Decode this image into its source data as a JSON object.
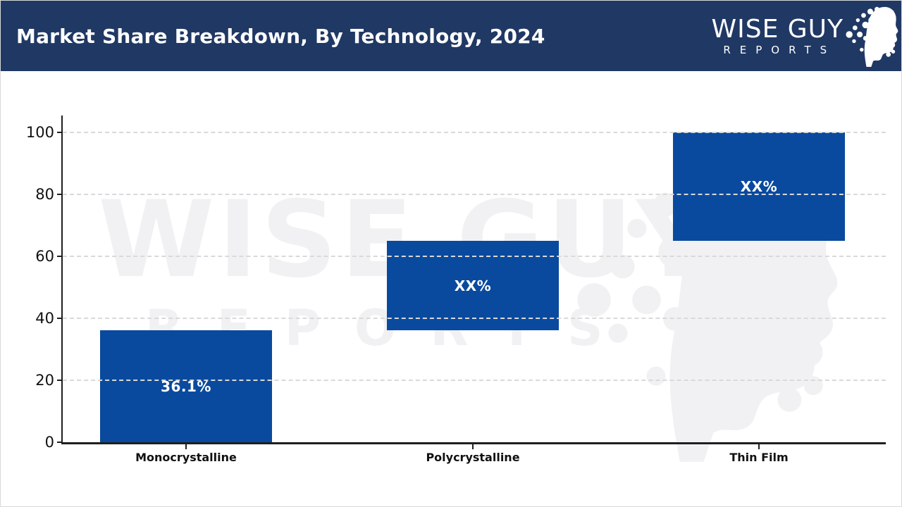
{
  "header": {
    "title": "Market Share Breakdown, By Technology, 2024",
    "logo": {
      "line1": "WISE GUY",
      "line2": "REPORTS"
    }
  },
  "watermark": {
    "line1": "WISE GUY",
    "line2": "REPORTS"
  },
  "chart_data": {
    "type": "bar",
    "subtype": "floating-waterfall-segments",
    "title": "Market Share Breakdown, By Technology, 2024",
    "categories": [
      "Monocrystalline",
      "Polycrystalline",
      "Thin Film"
    ],
    "bars": [
      {
        "category": "Monocrystalline",
        "start": 0,
        "end": 36.1,
        "label": "36.1%"
      },
      {
        "category": "Polycrystalline",
        "start": 36.1,
        "end": 65,
        "label": "XX%"
      },
      {
        "category": "Thin Film",
        "start": 65,
        "end": 100,
        "label": "XX%"
      }
    ],
    "xlabel": "",
    "ylabel": "",
    "ylim": [
      0,
      100
    ],
    "yticks": [
      0,
      20,
      40,
      60,
      80,
      100
    ],
    "grid": "horizontal-dashed",
    "legend": "none",
    "bar_color": "#0a4a9e",
    "bar_label_color": "#ffffff",
    "axis_color": "#1f1f1f",
    "grid_color": "#d9d9d9"
  },
  "colors": {
    "header_bg": "#203864",
    "header_text": "#ffffff",
    "watermark": "#f1f1f3",
    "page_bg": "#ffffff"
  }
}
